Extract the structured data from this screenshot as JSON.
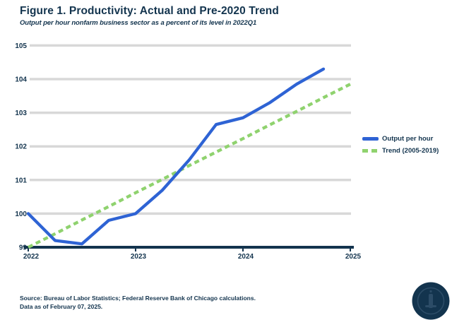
{
  "header": {
    "title": "Figure 1. Productivity: Actual and Pre-2020 Trend",
    "subtitle_prefix": "Output per hour nonfarm business sector as a percent of its level in ",
    "subtitle_emphasis": "2022Q1"
  },
  "chart_data": {
    "type": "line",
    "x": [
      "2022Q1",
      "2022Q2",
      "2022Q3",
      "2022Q4",
      "2023Q1",
      "2023Q2",
      "2023Q3",
      "2023Q4",
      "2024Q1",
      "2024Q2",
      "2024Q3",
      "2024Q4",
      "2025Q1"
    ],
    "series": [
      {
        "name": "Output per hour",
        "line_style": "solid",
        "color": "#2e63d4",
        "values": [
          100.0,
          99.2,
          99.1,
          99.8,
          100.0,
          100.7,
          101.6,
          102.65,
          102.85,
          103.3,
          103.85,
          104.3,
          null
        ]
      },
      {
        "name": "Trend (2005-2019)",
        "line_style": "dashed",
        "color": "#8fd26e",
        "values": [
          99.0,
          99.4,
          99.81,
          100.21,
          100.62,
          101.02,
          101.43,
          101.83,
          102.23,
          102.64,
          103.04,
          103.45,
          103.85
        ]
      }
    ],
    "y_ticks": [
      99,
      100,
      101,
      102,
      103,
      104,
      105
    ],
    "x_tick_labels": [
      "2022",
      "2023",
      "2024",
      "2025"
    ],
    "ylim": [
      99,
      105.4
    ],
    "grid": "horizontal",
    "legend_position": "right"
  },
  "legend": {
    "items": [
      {
        "label": "Output per hour",
        "swatch": "solid-line",
        "color": "#2e63d4"
      },
      {
        "label": "Trend (2005-2019)",
        "swatch": "dashed-line",
        "color": "#8fd26e"
      }
    ]
  },
  "footer": {
    "source": "Source: Bureau of Labor Statistics; Federal Reserve Bank of Chicago calculations.",
    "data_as_of": "Data as of February 07, 2025."
  },
  "logo": {
    "name": "Federal Reserve Bank of Chicago seal"
  },
  "colors": {
    "text": "#13344e",
    "axis": "#13344e",
    "gridline": "#d8d8d8",
    "actual_line": "#2e63d4",
    "trend_line": "#8fd26e",
    "background": "#ffffff"
  }
}
